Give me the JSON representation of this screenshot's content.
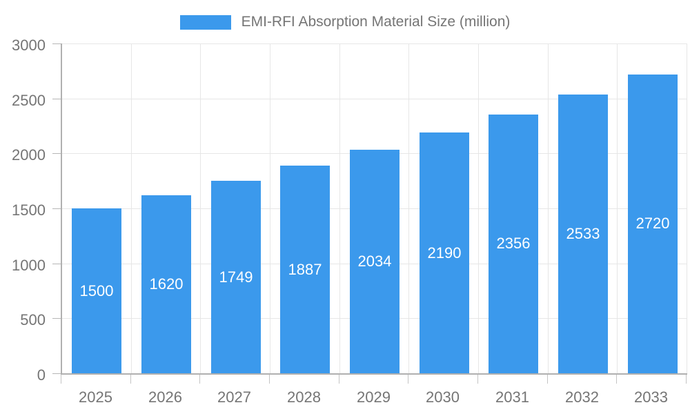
{
  "chart_data": {
    "type": "bar",
    "title": "EMI-RFI Absorption Material Size (million)",
    "legend_position": "top",
    "categories": [
      "2025",
      "2026",
      "2027",
      "2028",
      "2029",
      "2030",
      "2031",
      "2032",
      "2033"
    ],
    "values": [
      1500,
      1620,
      1749,
      1887,
      2034,
      2190,
      2356,
      2533,
      2720
    ],
    "xlabel": "",
    "ylabel": "",
    "ylim": [
      0,
      3000
    ],
    "yticks": [
      0,
      500,
      1000,
      1500,
      2000,
      2500,
      3000
    ],
    "grid": true,
    "colors": {
      "bar": "#3b99ec",
      "bar_label": "#ffffff",
      "axis_text": "#757575",
      "grid_line": "#e6e6e6",
      "axis_line": "#b0b0b0",
      "background": "#ffffff"
    }
  }
}
